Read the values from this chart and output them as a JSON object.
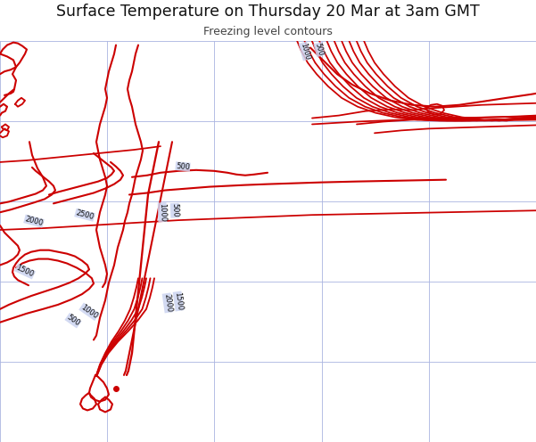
{
  "title": "Surface Temperature on Thursday 20 Mar at 3am GMT",
  "subtitle": "Freezing level contours",
  "bg_color": "#ccd4f0",
  "title_bg": "#ffffff",
  "line_color": "#cc0000",
  "grid_color": "#aab4e0",
  "fig_width": 6.01,
  "fig_height": 4.96,
  "dpi": 100,
  "title_fontsize": 12.5,
  "subtitle_fontsize": 9
}
